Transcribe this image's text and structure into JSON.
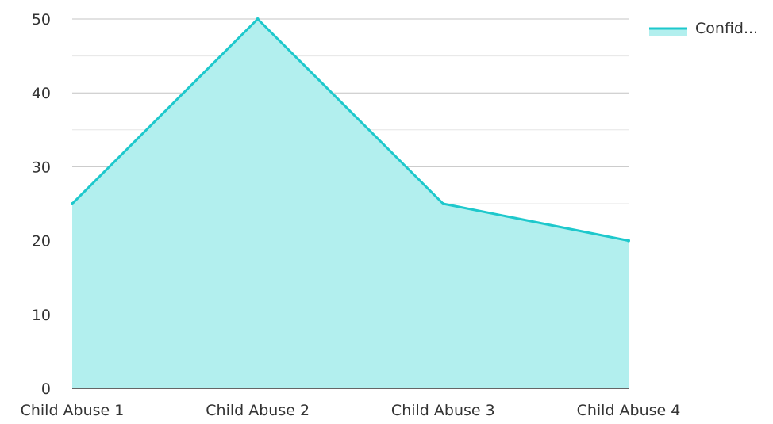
{
  "chart_data": {
    "type": "area",
    "categories": [
      "Child Abuse 1",
      "Child Abuse 2",
      "Child Abuse 3",
      "Child Abuse 4"
    ],
    "series": [
      {
        "name": "Confid...",
        "values": [
          25,
          50,
          25,
          20
        ]
      }
    ],
    "y_ticks": [
      "0",
      "10",
      "20",
      "30",
      "40",
      "50"
    ],
    "ylim": [
      0,
      50
    ],
    "grid": true,
    "minor_grid": true,
    "legend_position": "top-right",
    "colors": {
      "line": "#1ec8cc",
      "fill": "#b2efee",
      "major_grid": "#c4c4c4",
      "minor_grid": "#e6e6e6",
      "axis": "#333333"
    }
  }
}
